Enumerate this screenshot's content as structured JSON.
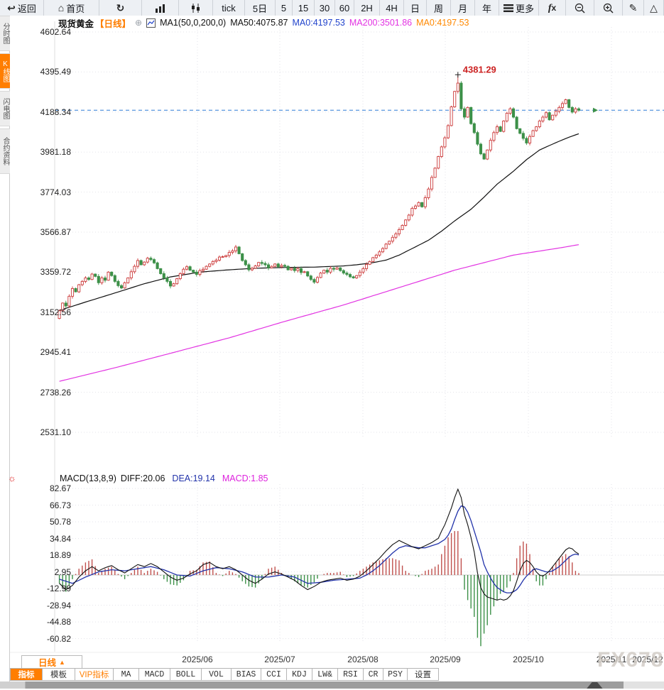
{
  "toolbar": {
    "items": [
      {
        "icon": "back-arrow",
        "label": "返回"
      },
      {
        "icon": "home",
        "label": "首页"
      },
      {
        "icon": "refresh",
        "label": ""
      },
      {
        "icon": "bar-chart",
        "label": ""
      },
      {
        "icon": "candlestick",
        "label": ""
      },
      {
        "icon": "",
        "label": "tick"
      },
      {
        "icon": "",
        "label": "5日"
      },
      {
        "icon": "",
        "label": "5"
      },
      {
        "icon": "",
        "label": "15"
      },
      {
        "icon": "",
        "label": "30"
      },
      {
        "icon": "",
        "label": "60"
      },
      {
        "icon": "",
        "label": "2H"
      },
      {
        "icon": "",
        "label": "4H"
      },
      {
        "icon": "",
        "label": "日"
      },
      {
        "icon": "",
        "label": "周"
      },
      {
        "icon": "",
        "label": "月"
      },
      {
        "icon": "",
        "label": "年"
      },
      {
        "icon": "menu",
        "label": "更多"
      },
      {
        "icon": "fx",
        "label": ""
      },
      {
        "icon": "zoom-out",
        "label": ""
      },
      {
        "icon": "zoom-in",
        "label": ""
      },
      {
        "icon": "pencil",
        "label": ""
      },
      {
        "icon": "triangle",
        "label": ""
      }
    ]
  },
  "sidebar": {
    "tabs": [
      {
        "label": "分时图",
        "active": false
      },
      {
        "label": "K线图",
        "active": true
      },
      {
        "label": "闪电图",
        "active": false
      },
      {
        "label": "合约资料",
        "active": false
      }
    ]
  },
  "header": {
    "symbol": "现货黄金",
    "period": "【日线】",
    "ma_settings": "MA1(50,0,200,0)",
    "ma50_label": "MA50:4075.87",
    "ma0_blue": "MA0:4197.53",
    "ma200_label": "MA200:3501.86",
    "ma0_orange": "MA0:4197.53"
  },
  "macd_header": {
    "title": "MACD(13,8,9)",
    "diff": "DIFF:20.06",
    "dea": "DEA:19.14",
    "macd": "MACD:1.85"
  },
  "bottom_bar": {
    "period_tab": "日线",
    "period_tab_arrow": "▲",
    "items": [
      {
        "label": "指标",
        "style": "active"
      },
      {
        "label": "模板",
        "style": "cjk"
      },
      {
        "label": "VIP指标",
        "style": "vip"
      },
      {
        "label": "MA",
        "style": ""
      },
      {
        "label": "MACD",
        "style": ""
      },
      {
        "label": "BOLL",
        "style": ""
      },
      {
        "label": "VOL",
        "style": ""
      },
      {
        "label": "BIAS",
        "style": ""
      },
      {
        "label": "CCI",
        "style": ""
      },
      {
        "label": "KDJ",
        "style": ""
      },
      {
        "label": "LW&",
        "style": ""
      },
      {
        "label": "RSI",
        "style": ""
      },
      {
        "label": "CR",
        "style": ""
      },
      {
        "label": "PSY",
        "style": ""
      },
      {
        "label": "设置",
        "style": "cjk"
      }
    ]
  },
  "watermark": "FX678",
  "colors": {
    "accent": "#ff7e00",
    "candle_up": "#cc3a3a",
    "candle_down": "#3c9048",
    "ma50": "#111111",
    "ma200": "#e233e2",
    "dea": "#2233aa",
    "diff": "#111111",
    "hist_pos": "#c0504d",
    "hist_neg": "#3c9048",
    "price_line": "#2e7bd6",
    "annotation": "#cc2222",
    "grid": "#e3e3ea"
  },
  "chart_data": {
    "type": "candlestick+macd",
    "title": "现货黄金 日线",
    "main": {
      "y_ticks": [
        4602.64,
        4395.49,
        4188.34,
        3981.18,
        3774.03,
        3566.87,
        3359.72,
        3152.56,
        2945.41,
        2738.26,
        2531.1
      ],
      "x_labels": [
        "2025/06",
        "2025/07",
        "2025/08",
        "2025/09",
        "2025/10",
        "2025/11",
        "2025/12"
      ],
      "current_price": 4197.53,
      "peak_annotation": {
        "text": "4381.29",
        "value": 4381.29
      },
      "first_open": 3120,
      "peak_index": 122,
      "wick_cycle": [
        6,
        10,
        4,
        8,
        12,
        5,
        9,
        3,
        11,
        7
      ],
      "closes": [
        3160,
        3200,
        3185,
        3235,
        3275,
        3258,
        3295,
        3312,
        3330,
        3322,
        3350,
        3338,
        3305,
        3330,
        3318,
        3360,
        3342,
        3312,
        3290,
        3278,
        3305,
        3330,
        3362,
        3390,
        3420,
        3398,
        3412,
        3432,
        3425,
        3408,
        3378,
        3352,
        3330,
        3312,
        3288,
        3300,
        3326,
        3352,
        3375,
        3388,
        3370,
        3360,
        3348,
        3368,
        3375,
        3390,
        3402,
        3415,
        3422,
        3438,
        3440,
        3446,
        3462,
        3470,
        3490,
        3455,
        3420,
        3398,
        3372,
        3380,
        3392,
        3410,
        3405,
        3398,
        3382,
        3390,
        3402,
        3388,
        3395,
        3390,
        3372,
        3380,
        3368,
        3378,
        3358,
        3362,
        3340,
        3322,
        3308,
        3332,
        3355,
        3370,
        3360,
        3380,
        3375,
        3382,
        3368,
        3355,
        3348,
        3336,
        3330,
        3342,
        3360,
        3378,
        3400,
        3415,
        3435,
        3448,
        3465,
        3482,
        3505,
        3520,
        3540,
        3558,
        3580,
        3602,
        3630,
        3655,
        3690,
        3702,
        3720,
        3698,
        3745,
        3790,
        3850,
        3898,
        3958,
        4008,
        4055,
        4118,
        4215,
        4295,
        4338,
        4205,
        4162,
        4212,
        4128,
        4082,
        4022,
        3972,
        3945,
        3992,
        4042,
        4082,
        4112,
        4088,
        4142,
        4182,
        4205,
        4162,
        4102,
        4078,
        4052,
        4028,
        4062,
        4092,
        4112,
        4142,
        4162,
        4185,
        4148,
        4172,
        4192,
        4212,
        4232,
        4252,
        4212,
        4188,
        4205,
        4197.53
      ],
      "ma50": {
        "name": "MA50",
        "last": 4075.87,
        "anchors": [
          [
            0,
            3162
          ],
          [
            8,
            3205
          ],
          [
            17,
            3252
          ],
          [
            26,
            3300
          ],
          [
            34,
            3335
          ],
          [
            43,
            3360
          ],
          [
            52,
            3372
          ],
          [
            60,
            3380
          ],
          [
            69,
            3384
          ],
          [
            78,
            3386
          ],
          [
            87,
            3392
          ],
          [
            91,
            3398
          ],
          [
            95,
            3406
          ],
          [
            100,
            3422
          ],
          [
            104,
            3448
          ],
          [
            108,
            3482
          ],
          [
            113,
            3525
          ],
          [
            117,
            3572
          ],
          [
            121,
            3625
          ],
          [
            126,
            3685
          ],
          [
            130,
            3748
          ],
          [
            134,
            3815
          ],
          [
            139,
            3882
          ],
          [
            143,
            3942
          ],
          [
            147,
            3992
          ],
          [
            152,
            4030
          ],
          [
            156,
            4058
          ],
          [
            159,
            4076
          ]
        ]
      },
      "ma200": {
        "name": "MA200",
        "last": 3501.86,
        "anchors": [
          [
            0,
            2795
          ],
          [
            17,
            2865
          ],
          [
            34,
            2940
          ],
          [
            52,
            3020
          ],
          [
            69,
            3105
          ],
          [
            87,
            3190
          ],
          [
            104,
            3280
          ],
          [
            121,
            3370
          ],
          [
            139,
            3448
          ],
          [
            152,
            3482
          ],
          [
            159,
            3502
          ]
        ]
      }
    },
    "macd": {
      "y_ticks": [
        82.67,
        66.73,
        50.78,
        34.84,
        18.89,
        2.95,
        -12.99,
        -28.94,
        -44.88,
        -60.82
      ],
      "diff_last": 20.06,
      "dea_last": 19.14,
      "hist_last": 1.85,
      "diff_anchors": [
        [
          0,
          -8
        ],
        [
          2,
          -14
        ],
        [
          4,
          -10
        ],
        [
          6,
          -2
        ],
        [
          8,
          4
        ],
        [
          10,
          8
        ],
        [
          12,
          4
        ],
        [
          14,
          7
        ],
        [
          16,
          9
        ],
        [
          18,
          5
        ],
        [
          20,
          2
        ],
        [
          22,
          6
        ],
        [
          24,
          10
        ],
        [
          26,
          8
        ],
        [
          28,
          11
        ],
        [
          30,
          8
        ],
        [
          32,
          3
        ],
        [
          34,
          -2
        ],
        [
          36,
          -5
        ],
        [
          38,
          -3
        ],
        [
          40,
          1
        ],
        [
          42,
          4
        ],
        [
          44,
          10
        ],
        [
          46,
          12
        ],
        [
          48,
          8
        ],
        [
          50,
          6
        ],
        [
          52,
          8
        ],
        [
          54,
          5
        ],
        [
          56,
          0
        ],
        [
          58,
          -5
        ],
        [
          60,
          -8
        ],
        [
          62,
          -4
        ],
        [
          64,
          1
        ],
        [
          66,
          3
        ],
        [
          68,
          1
        ],
        [
          70,
          -2
        ],
        [
          72,
          -5
        ],
        [
          74,
          -10
        ],
        [
          76,
          -14
        ],
        [
          78,
          -11
        ],
        [
          80,
          -7
        ],
        [
          82,
          -5
        ],
        [
          84,
          -4
        ],
        [
          86,
          -3
        ],
        [
          88,
          -5
        ],
        [
          90,
          -4
        ],
        [
          92,
          -1
        ],
        [
          94,
          4
        ],
        [
          96,
          10
        ],
        [
          98,
          16
        ],
        [
          100,
          23
        ],
        [
          102,
          29
        ],
        [
          104,
          33
        ],
        [
          106,
          30
        ],
        [
          108,
          27
        ],
        [
          110,
          25
        ],
        [
          112,
          28
        ],
        [
          114,
          31
        ],
        [
          116,
          35
        ],
        [
          117,
          42
        ],
        [
          118,
          48
        ],
        [
          119,
          56
        ],
        [
          120,
          64
        ],
        [
          121,
          74
        ],
        [
          122,
          82
        ],
        [
          123,
          74
        ],
        [
          124,
          58
        ],
        [
          125,
          48
        ],
        [
          126,
          36
        ],
        [
          127,
          22
        ],
        [
          128,
          2
        ],
        [
          129,
          -12
        ],
        [
          130,
          -18
        ],
        [
          131,
          -21
        ],
        [
          132,
          -22
        ],
        [
          133,
          -23
        ],
        [
          134,
          -24
        ],
        [
          135,
          -23
        ],
        [
          136,
          -24
        ],
        [
          137,
          -23
        ],
        [
          138,
          -20
        ],
        [
          139,
          -15
        ],
        [
          140,
          -6
        ],
        [
          141,
          4
        ],
        [
          142,
          11
        ],
        [
          143,
          14
        ],
        [
          144,
          12
        ],
        [
          145,
          8
        ],
        [
          146,
          3
        ],
        [
          147,
          0
        ],
        [
          148,
          -1
        ],
        [
          149,
          1
        ],
        [
          150,
          4
        ],
        [
          151,
          8
        ],
        [
          152,
          12
        ],
        [
          153,
          16
        ],
        [
          154,
          20
        ],
        [
          155,
          24
        ],
        [
          156,
          26
        ],
        [
          157,
          25
        ],
        [
          158,
          22
        ],
        [
          159,
          20.06
        ]
      ],
      "dea_anchors": [
        [
          0,
          -4
        ],
        [
          4,
          -8
        ],
        [
          8,
          -2
        ],
        [
          12,
          3
        ],
        [
          16,
          5
        ],
        [
          20,
          4
        ],
        [
          24,
          6
        ],
        [
          28,
          8
        ],
        [
          32,
          5
        ],
        [
          36,
          0
        ],
        [
          40,
          -1
        ],
        [
          44,
          4
        ],
        [
          48,
          7
        ],
        [
          52,
          6
        ],
        [
          56,
          3
        ],
        [
          60,
          -2
        ],
        [
          64,
          -2
        ],
        [
          68,
          0
        ],
        [
          72,
          -2
        ],
        [
          76,
          -8
        ],
        [
          80,
          -7
        ],
        [
          84,
          -5
        ],
        [
          88,
          -4
        ],
        [
          92,
          -3
        ],
        [
          94,
          0
        ],
        [
          96,
          4
        ],
        [
          98,
          9
        ],
        [
          100,
          15
        ],
        [
          102,
          21
        ],
        [
          104,
          26
        ],
        [
          106,
          28
        ],
        [
          108,
          27
        ],
        [
          110,
          26
        ],
        [
          112,
          26
        ],
        [
          114,
          28
        ],
        [
          116,
          30
        ],
        [
          117,
          32
        ],
        [
          118,
          34
        ],
        [
          119,
          38
        ],
        [
          120,
          44
        ],
        [
          121,
          53
        ],
        [
          122,
          61
        ],
        [
          123,
          66
        ],
        [
          124,
          65
        ],
        [
          125,
          60
        ],
        [
          126,
          52
        ],
        [
          127,
          42
        ],
        [
          128,
          32
        ],
        [
          129,
          22
        ],
        [
          130,
          10
        ],
        [
          131,
          3
        ],
        [
          132,
          -3
        ],
        [
          133,
          -8
        ],
        [
          134,
          -12
        ],
        [
          135,
          -14
        ],
        [
          136,
          -16
        ],
        [
          137,
          -17
        ],
        [
          138,
          -17
        ],
        [
          139,
          -16
        ],
        [
          140,
          -14
        ],
        [
          141,
          -10
        ],
        [
          142,
          -5
        ],
        [
          143,
          -1
        ],
        [
          144,
          2
        ],
        [
          145,
          5
        ],
        [
          146,
          6
        ],
        [
          147,
          5
        ],
        [
          148,
          4
        ],
        [
          149,
          3
        ],
        [
          150,
          3
        ],
        [
          151,
          4
        ],
        [
          152,
          6
        ],
        [
          153,
          8
        ],
        [
          154,
          11
        ],
        [
          155,
          14
        ],
        [
          156,
          17
        ],
        [
          157,
          19
        ],
        [
          158,
          20
        ],
        [
          159,
          19.14
        ]
      ]
    }
  }
}
